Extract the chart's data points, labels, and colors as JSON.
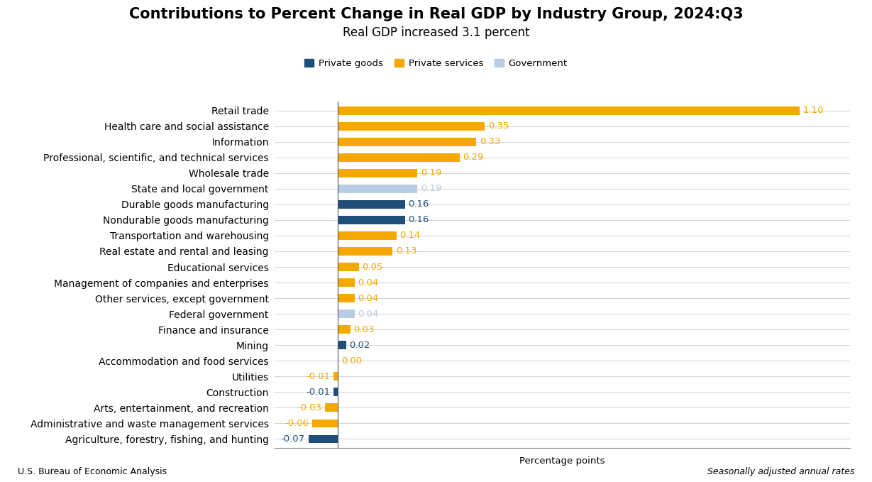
{
  "title": "Contributions to Percent Change in Real GDP by Industry Group, 2024:Q3",
  "subtitle": "Real GDP increased 3.1 percent",
  "xlabel": "Percentage points",
  "footer_left": "U.S. Bureau of Economic Analysis",
  "footer_right": "Seasonally adjusted annual rates",
  "legend": [
    "Private goods",
    "Private services",
    "Government"
  ],
  "legend_colors": [
    "#1f4e79",
    "#f5a800",
    "#b8cce4"
  ],
  "categories": [
    "Retail trade",
    "Health care and social assistance",
    "Information",
    "Professional, scientific, and technical services",
    "Wholesale trade",
    "State and local government",
    "Durable goods manufacturing",
    "Nondurable goods manufacturing",
    "Transportation and warehousing",
    "Real estate and rental and leasing",
    "Educational services",
    "Management of companies and enterprises",
    "Other services, except government",
    "Federal government",
    "Finance and insurance",
    "Mining",
    "Accommodation and food services",
    "Utilities",
    "Construction",
    "Arts, entertainment, and recreation",
    "Administrative and waste management services",
    "Agriculture, forestry, fishing, and hunting"
  ],
  "values": [
    1.1,
    0.35,
    0.33,
    0.29,
    0.19,
    0.19,
    0.16,
    0.16,
    0.14,
    0.13,
    0.05,
    0.04,
    0.04,
    0.04,
    0.03,
    0.02,
    0.0,
    -0.01,
    -0.01,
    -0.03,
    -0.06,
    -0.07
  ],
  "colors": [
    "#f5a800",
    "#f5a800",
    "#f5a800",
    "#f5a800",
    "#f5a800",
    "#b8cce4",
    "#1f4e79",
    "#1f4e79",
    "#f5a800",
    "#f5a800",
    "#f5a800",
    "#f5a800",
    "#f5a800",
    "#b8cce4",
    "#f5a800",
    "#1f4e79",
    "#f5a800",
    "#f5a800",
    "#1f4e79",
    "#f5a800",
    "#f5a800",
    "#1f4e79"
  ],
  "background_color": "#ffffff",
  "grid_color": "#cccccc",
  "title_fontsize": 15,
  "subtitle_fontsize": 12,
  "label_fontsize": 10,
  "value_fontsize": 9.5,
  "tick_fontsize": 9,
  "xlim": [
    -0.15,
    1.22
  ]
}
